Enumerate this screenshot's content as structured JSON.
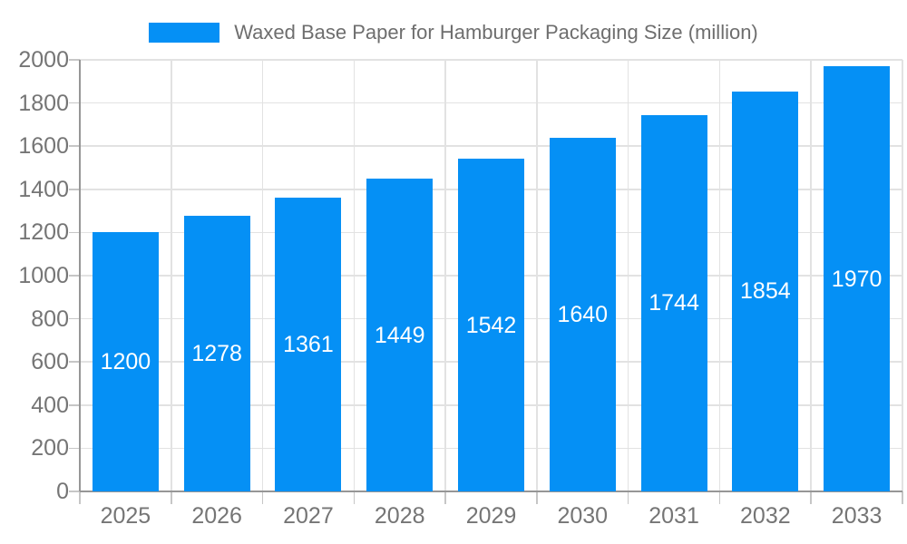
{
  "chart_data": {
    "type": "bar",
    "title": "Waxed Base Paper for Hamburger Packaging Size (million)",
    "categories": [
      "2025",
      "2026",
      "2027",
      "2028",
      "2029",
      "2030",
      "2031",
      "2032",
      "2033"
    ],
    "series": [
      {
        "name": "Waxed Base Paper for Hamburger Packaging Size (million)",
        "values": [
          1200,
          1278,
          1361,
          1449,
          1542,
          1640,
          1744,
          1854,
          1970
        ]
      }
    ],
    "bar_value_labels": [
      "1200",
      "1278",
      "1361",
      "1449",
      "1542",
      "1640",
      "1744",
      "1854",
      "1970"
    ],
    "xlabel": "",
    "ylabel": "",
    "ylim": [
      0,
      2000
    ],
    "yticks": [
      0,
      200,
      400,
      600,
      800,
      1000,
      1200,
      1400,
      1600,
      1800,
      2000
    ],
    "grid": true,
    "legend_position": "top-center"
  },
  "legend": {
    "label": "Waxed Base Paper for Hamburger Packaging Size (million)"
  },
  "colors": {
    "bar": "#0590F5",
    "bar_label_text": "#FFFFFF",
    "axis_label_text": "#757575",
    "legend_text": "#6E6E6E",
    "gridline": "#E2E2E2",
    "axis_line": "#969696",
    "tick_mark": "#C6C6C6",
    "background": "#FFFFFF"
  }
}
